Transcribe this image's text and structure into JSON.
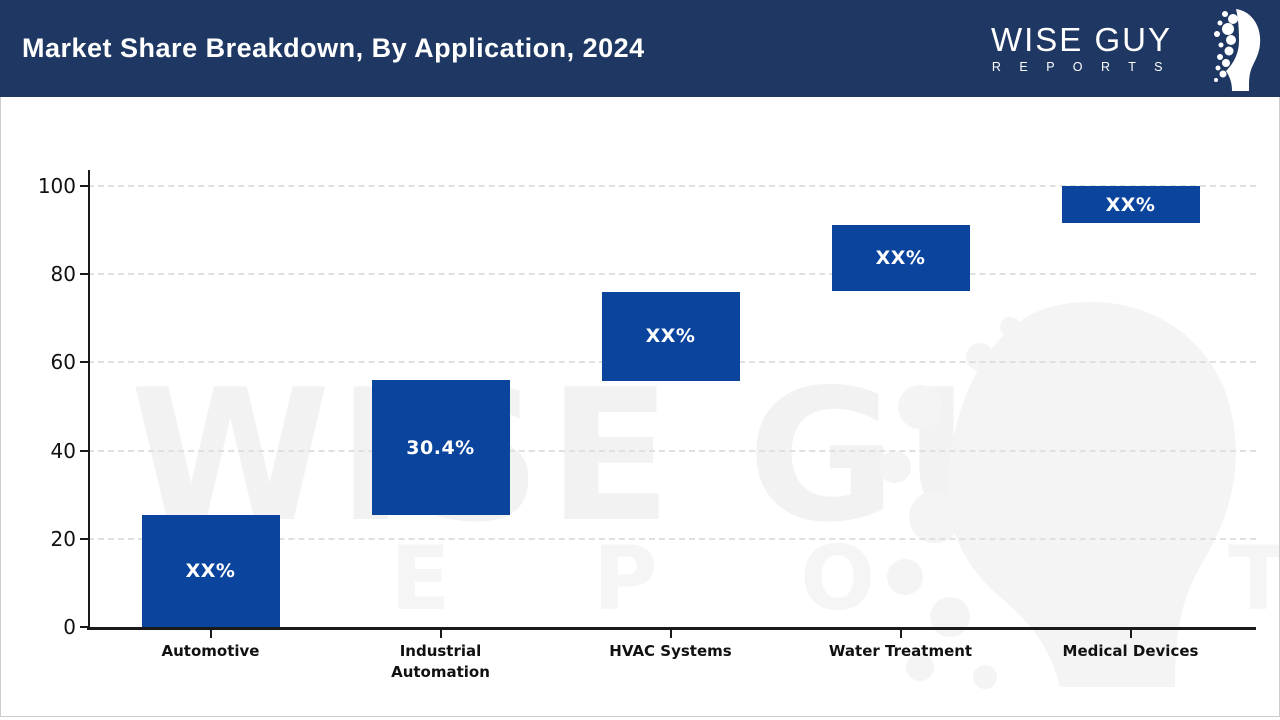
{
  "header": {
    "title": "Market Share Breakdown, By Application, 2024",
    "logo": {
      "line1": "WISE GUY",
      "line2": "R E P O R T S"
    }
  },
  "watermark": {
    "line1": "WISE GUY",
    "line2": "R E P O R T S"
  },
  "chart_data": {
    "type": "bar",
    "subtype": "floating-waterfall",
    "title": "Market Share Breakdown, By Application, 2024",
    "categories": [
      "Automotive",
      "Industrial Automation",
      "HVAC Systems",
      "Water Treatment",
      "Medical Devices"
    ],
    "segments": [
      {
        "category": "Automotive",
        "start": 0,
        "end": 25.5,
        "label": "XX%"
      },
      {
        "category": "Industrial Automation",
        "start": 25.5,
        "end": 55.9,
        "label": "30.4%"
      },
      {
        "category": "HVAC Systems",
        "start": 55.8,
        "end": 76.0,
        "label": "XX%"
      },
      {
        "category": "Water Treatment",
        "start": 76.1,
        "end": 91.1,
        "label": "XX%"
      },
      {
        "category": "Medical Devices",
        "start": 91.5,
        "end": 100,
        "label": "XX%"
      }
    ],
    "yticks": [
      0,
      20,
      40,
      60,
      80,
      100
    ],
    "ylim": [
      0,
      103.5
    ],
    "xlabel": "",
    "ylabel": "",
    "grid": "dashed-horizontal",
    "legend": "none",
    "colors": {
      "bar": "#0a449c",
      "bar_label": "#ffffff",
      "header_bg": "#1f3863",
      "axis": "#1a1a1a",
      "gridline": "#e0e0e0",
      "watermark": "#f2f2f2"
    }
  }
}
